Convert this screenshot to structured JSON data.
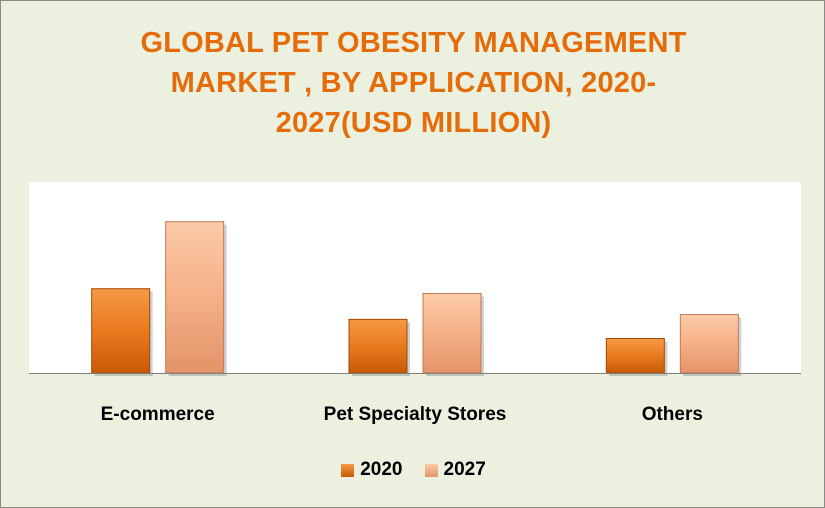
{
  "chart_data": {
    "type": "bar",
    "title": "GLOBAL PET OBESITY MANAGEMENT MARKET , BY APPLICATION, 2020-2027(USD MILLION)",
    "title_lines": [
      "GLOBAL PET OBESITY MANAGEMENT",
      "MARKET , BY APPLICATION, 2020-",
      "2027(USD MILLION)"
    ],
    "categories": [
      "E-commerce",
      "Pet Specialty Stores",
      "Others"
    ],
    "series": [
      {
        "name": "2020",
        "values": [
          88,
          56,
          36
        ],
        "color": "#e46c0a"
      },
      {
        "name": "2027",
        "values": [
          158,
          83,
          61
        ],
        "color": "#f4a77a"
      }
    ],
    "ylim": [
      0,
      190
    ],
    "grid": false,
    "y_axis_visible": false,
    "legend_position": "bottom"
  }
}
